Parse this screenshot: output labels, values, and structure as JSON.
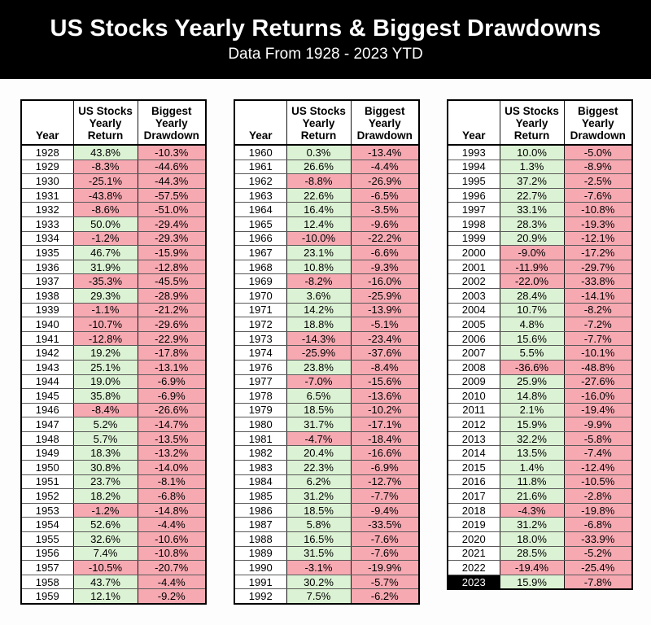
{
  "colors": {
    "banner_bg": "#000000",
    "banner_text": "#ffffff",
    "positive_bg": "#dcf2d4",
    "negative_bg": "#f7a9b2",
    "highlight_year_bg": "#000000",
    "highlight_year_text": "#ffffff"
  },
  "chart_data": {
    "type": "table",
    "title": "US Stocks Yearly Returns & Biggest Drawdowns",
    "subtitle": "Data From 1928 - 2023 YTD",
    "columns": [
      "Year",
      "US Stocks Yearly Return",
      "Biggest Yearly Drawdown"
    ],
    "tables": [
      {
        "rows": [
          {
            "year": "1928",
            "return": "43.8%",
            "drawdown": "-10.3%"
          },
          {
            "year": "1929",
            "return": "-8.3%",
            "drawdown": "-44.6%"
          },
          {
            "year": "1930",
            "return": "-25.1%",
            "drawdown": "-44.3%"
          },
          {
            "year": "1931",
            "return": "-43.8%",
            "drawdown": "-57.5%"
          },
          {
            "year": "1932",
            "return": "-8.6%",
            "drawdown": "-51.0%"
          },
          {
            "year": "1933",
            "return": "50.0%",
            "drawdown": "-29.4%"
          },
          {
            "year": "1934",
            "return": "-1.2%",
            "drawdown": "-29.3%"
          },
          {
            "year": "1935",
            "return": "46.7%",
            "drawdown": "-15.9%"
          },
          {
            "year": "1936",
            "return": "31.9%",
            "drawdown": "-12.8%"
          },
          {
            "year": "1937",
            "return": "-35.3%",
            "drawdown": "-45.5%"
          },
          {
            "year": "1938",
            "return": "29.3%",
            "drawdown": "-28.9%"
          },
          {
            "year": "1939",
            "return": "-1.1%",
            "drawdown": "-21.2%"
          },
          {
            "year": "1940",
            "return": "-10.7%",
            "drawdown": "-29.6%"
          },
          {
            "year": "1941",
            "return": "-12.8%",
            "drawdown": "-22.9%"
          },
          {
            "year": "1942",
            "return": "19.2%",
            "drawdown": "-17.8%"
          },
          {
            "year": "1943",
            "return": "25.1%",
            "drawdown": "-13.1%"
          },
          {
            "year": "1944",
            "return": "19.0%",
            "drawdown": "-6.9%"
          },
          {
            "year": "1945",
            "return": "35.8%",
            "drawdown": "-6.9%"
          },
          {
            "year": "1946",
            "return": "-8.4%",
            "drawdown": "-26.6%"
          },
          {
            "year": "1947",
            "return": "5.2%",
            "drawdown": "-14.7%"
          },
          {
            "year": "1948",
            "return": "5.7%",
            "drawdown": "-13.5%"
          },
          {
            "year": "1949",
            "return": "18.3%",
            "drawdown": "-13.2%"
          },
          {
            "year": "1950",
            "return": "30.8%",
            "drawdown": "-14.0%"
          },
          {
            "year": "1951",
            "return": "23.7%",
            "drawdown": "-8.1%"
          },
          {
            "year": "1952",
            "return": "18.2%",
            "drawdown": "-6.8%"
          },
          {
            "year": "1953",
            "return": "-1.2%",
            "drawdown": "-14.8%"
          },
          {
            "year": "1954",
            "return": "52.6%",
            "drawdown": "-4.4%"
          },
          {
            "year": "1955",
            "return": "32.6%",
            "drawdown": "-10.6%"
          },
          {
            "year": "1956",
            "return": "7.4%",
            "drawdown": "-10.8%"
          },
          {
            "year": "1957",
            "return": "-10.5%",
            "drawdown": "-20.7%"
          },
          {
            "year": "1958",
            "return": "43.7%",
            "drawdown": "-4.4%"
          },
          {
            "year": "1959",
            "return": "12.1%",
            "drawdown": "-9.2%"
          }
        ]
      },
      {
        "rows": [
          {
            "year": "1960",
            "return": "0.3%",
            "drawdown": "-13.4%"
          },
          {
            "year": "1961",
            "return": "26.6%",
            "drawdown": "-4.4%"
          },
          {
            "year": "1962",
            "return": "-8.8%",
            "drawdown": "-26.9%"
          },
          {
            "year": "1963",
            "return": "22.6%",
            "drawdown": "-6.5%"
          },
          {
            "year": "1964",
            "return": "16.4%",
            "drawdown": "-3.5%"
          },
          {
            "year": "1965",
            "return": "12.4%",
            "drawdown": "-9.6%"
          },
          {
            "year": "1966",
            "return": "-10.0%",
            "drawdown": "-22.2%"
          },
          {
            "year": "1967",
            "return": "23.1%",
            "drawdown": "-6.6%"
          },
          {
            "year": "1968",
            "return": "10.8%",
            "drawdown": "-9.3%"
          },
          {
            "year": "1969",
            "return": "-8.2%",
            "drawdown": "-16.0%"
          },
          {
            "year": "1970",
            "return": "3.6%",
            "drawdown": "-25.9%"
          },
          {
            "year": "1971",
            "return": "14.2%",
            "drawdown": "-13.9%"
          },
          {
            "year": "1972",
            "return": "18.8%",
            "drawdown": "-5.1%"
          },
          {
            "year": "1973",
            "return": "-14.3%",
            "drawdown": "-23.4%"
          },
          {
            "year": "1974",
            "return": "-25.9%",
            "drawdown": "-37.6%"
          },
          {
            "year": "1976",
            "return": "23.8%",
            "drawdown": "-8.4%"
          },
          {
            "year": "1977",
            "return": "-7.0%",
            "drawdown": "-15.6%"
          },
          {
            "year": "1978",
            "return": "6.5%",
            "drawdown": "-13.6%"
          },
          {
            "year": "1979",
            "return": "18.5%",
            "drawdown": "-10.2%"
          },
          {
            "year": "1980",
            "return": "31.7%",
            "drawdown": "-17.1%"
          },
          {
            "year": "1981",
            "return": "-4.7%",
            "drawdown": "-18.4%"
          },
          {
            "year": "1982",
            "return": "20.4%",
            "drawdown": "-16.6%"
          },
          {
            "year": "1983",
            "return": "22.3%",
            "drawdown": "-6.9%"
          },
          {
            "year": "1984",
            "return": "6.2%",
            "drawdown": "-12.7%"
          },
          {
            "year": "1985",
            "return": "31.2%",
            "drawdown": "-7.7%"
          },
          {
            "year": "1986",
            "return": "18.5%",
            "drawdown": "-9.4%"
          },
          {
            "year": "1987",
            "return": "5.8%",
            "drawdown": "-33.5%"
          },
          {
            "year": "1988",
            "return": "16.5%",
            "drawdown": "-7.6%"
          },
          {
            "year": "1989",
            "return": "31.5%",
            "drawdown": "-7.6%"
          },
          {
            "year": "1990",
            "return": "-3.1%",
            "drawdown": "-19.9%"
          },
          {
            "year": "1991",
            "return": "30.2%",
            "drawdown": "-5.7%"
          },
          {
            "year": "1992",
            "return": "7.5%",
            "drawdown": "-6.2%"
          }
        ]
      },
      {
        "rows": [
          {
            "year": "1993",
            "return": "10.0%",
            "drawdown": "-5.0%"
          },
          {
            "year": "1994",
            "return": "1.3%",
            "drawdown": "-8.9%"
          },
          {
            "year": "1995",
            "return": "37.2%",
            "drawdown": "-2.5%"
          },
          {
            "year": "1996",
            "return": "22.7%",
            "drawdown": "-7.6%"
          },
          {
            "year": "1997",
            "return": "33.1%",
            "drawdown": "-10.8%"
          },
          {
            "year": "1998",
            "return": "28.3%",
            "drawdown": "-19.3%"
          },
          {
            "year": "1999",
            "return": "20.9%",
            "drawdown": "-12.1%"
          },
          {
            "year": "2000",
            "return": "-9.0%",
            "drawdown": "-17.2%"
          },
          {
            "year": "2001",
            "return": "-11.9%",
            "drawdown": "-29.7%"
          },
          {
            "year": "2002",
            "return": "-22.0%",
            "drawdown": "-33.8%"
          },
          {
            "year": "2003",
            "return": "28.4%",
            "drawdown": "-14.1%"
          },
          {
            "year": "2004",
            "return": "10.7%",
            "drawdown": "-8.2%"
          },
          {
            "year": "2005",
            "return": "4.8%",
            "drawdown": "-7.2%"
          },
          {
            "year": "2006",
            "return": "15.6%",
            "drawdown": "-7.7%"
          },
          {
            "year": "2007",
            "return": "5.5%",
            "drawdown": "-10.1%"
          },
          {
            "year": "2008",
            "return": "-36.6%",
            "drawdown": "-48.8%"
          },
          {
            "year": "2009",
            "return": "25.9%",
            "drawdown": "-27.6%"
          },
          {
            "year": "2010",
            "return": "14.8%",
            "drawdown": "-16.0%"
          },
          {
            "year": "2011",
            "return": "2.1%",
            "drawdown": "-19.4%"
          },
          {
            "year": "2012",
            "return": "15.9%",
            "drawdown": "-9.9%"
          },
          {
            "year": "2013",
            "return": "32.2%",
            "drawdown": "-5.8%"
          },
          {
            "year": "2014",
            "return": "13.5%",
            "drawdown": "-7.4%"
          },
          {
            "year": "2015",
            "return": "1.4%",
            "drawdown": "-12.4%"
          },
          {
            "year": "2016",
            "return": "11.8%",
            "drawdown": "-10.5%"
          },
          {
            "year": "2017",
            "return": "21.6%",
            "drawdown": "-2.8%"
          },
          {
            "year": "2018",
            "return": "-4.3%",
            "drawdown": "-19.8%"
          },
          {
            "year": "2019",
            "return": "31.2%",
            "drawdown": "-6.8%"
          },
          {
            "year": "2020",
            "return": "18.0%",
            "drawdown": "-33.9%"
          },
          {
            "year": "2021",
            "return": "28.5%",
            "drawdown": "-5.2%"
          },
          {
            "year": "2022",
            "return": "-19.4%",
            "drawdown": "-25.4%"
          },
          {
            "year": "2023",
            "return": "15.9%",
            "drawdown": "-7.8%",
            "highlight": true
          }
        ]
      }
    ]
  }
}
